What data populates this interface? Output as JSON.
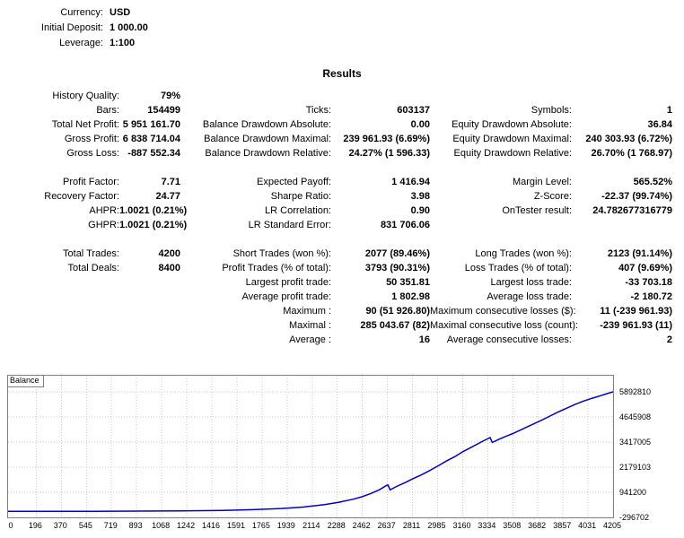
{
  "account": {
    "rows": [
      {
        "label": "Currency:",
        "value": "USD"
      },
      {
        "label": "Initial Deposit:",
        "value": "1 000.00"
      },
      {
        "label": "Leverage:",
        "value": "1:100"
      }
    ]
  },
  "results_title": "Results",
  "stats": {
    "groups": [
      {
        "rows": [
          [
            "History Quality:",
            "79%",
            "",
            "",
            "",
            ""
          ],
          [
            "Bars:",
            "154499",
            "Ticks:",
            "603137",
            "Symbols:",
            "1"
          ],
          [
            "Total Net Profit:",
            "5 951 161.70",
            "Balance Drawdown Absolute:",
            "0.00",
            "Equity Drawdown Absolute:",
            "36.84"
          ],
          [
            "Gross Profit:",
            "6 838 714.04",
            "Balance Drawdown Maximal:",
            "239 961.93 (6.69%)",
            "Equity Drawdown Maximal:",
            "240 303.93 (6.72%)"
          ],
          [
            "Gross Loss:",
            "-887 552.34",
            "Balance Drawdown Relative:",
            "24.27% (1 596.33)",
            "Equity Drawdown Relative:",
            "26.70% (1 768.97)"
          ]
        ]
      },
      {
        "rows": [
          [
            "Profit Factor:",
            "7.71",
            "Expected Payoff:",
            "1 416.94",
            "Margin Level:",
            "565.52%"
          ],
          [
            "Recovery Factor:",
            "24.77",
            "Sharpe Ratio:",
            "3.98",
            "Z-Score:",
            "-22.37 (99.74%)"
          ],
          [
            "AHPR:",
            "1.0021 (0.21%)",
            "LR Correlation:",
            "0.90",
            "OnTester result:",
            "24.782677316779"
          ],
          [
            "GHPR:",
            "1.0021 (0.21%)",
            "LR Standard Error:",
            "831 706.06",
            "",
            ""
          ]
        ]
      },
      {
        "rows": [
          [
            "Total Trades:",
            "4200",
            "Short Trades (won %):",
            "2077 (89.46%)",
            "Long Trades (won %):",
            "2123 (91.14%)"
          ],
          [
            "Total Deals:",
            "8400",
            "Profit Trades (% of total):",
            "3793 (90.31%)",
            "Loss Trades (% of total):",
            "407 (9.69%)"
          ],
          [
            "",
            "",
            "Largest profit trade:",
            "50 351.81",
            "Largest loss trade:",
            "-33 703.18"
          ],
          [
            "",
            "",
            "Average profit trade:",
            "1 802.98",
            "Average loss trade:",
            "-2 180.72"
          ],
          [
            "",
            "",
            "Maximum :",
            "90 (51 926.80)",
            "Maximum consecutive losses ($):",
            "11 (-239 961.93)"
          ],
          [
            "",
            "",
            "Maximal :",
            "285 043.67 (82)",
            "Maximal consecutive loss (count):",
            "-239 961.93 (11)"
          ],
          [
            "",
            "",
            "Average :",
            "16",
            "Average consecutive losses:",
            "2"
          ]
        ]
      }
    ]
  },
  "chart_data": {
    "type": "line",
    "title": "Balance",
    "legend_label": "Balance",
    "line_color": "#0000c8",
    "grid_color": "#c8c8c8",
    "x_range": [
      0,
      4205
    ],
    "y_range": [
      -296702,
      6690000
    ],
    "x_ticks": [
      0,
      196,
      370,
      545,
      719,
      893,
      1068,
      1242,
      1416,
      1591,
      1765,
      1939,
      2114,
      2288,
      2462,
      2637,
      2811,
      2985,
      3160,
      3334,
      3508,
      3682,
      3857,
      4031,
      4205
    ],
    "y_ticks": [
      5892810,
      4645908,
      3417005,
      2179103,
      941200,
      -296702
    ],
    "series": [
      {
        "name": "Balance",
        "points": [
          [
            0,
            1000
          ],
          [
            300,
            2000
          ],
          [
            600,
            5000
          ],
          [
            900,
            12000
          ],
          [
            1200,
            25000
          ],
          [
            1500,
            50000
          ],
          [
            1700,
            85000
          ],
          [
            1900,
            140000
          ],
          [
            2050,
            210000
          ],
          [
            2200,
            330000
          ],
          [
            2300,
            450000
          ],
          [
            2400,
            600000
          ],
          [
            2460,
            720000
          ],
          [
            2520,
            880000
          ],
          [
            2580,
            1060000
          ],
          [
            2630,
            1280000
          ],
          [
            2640,
            1300000
          ],
          [
            2655,
            1060000
          ],
          [
            2700,
            1230000
          ],
          [
            2760,
            1420000
          ],
          [
            2811,
            1600000
          ],
          [
            2870,
            1790000
          ],
          [
            2930,
            2010000
          ],
          [
            2985,
            2230000
          ],
          [
            3050,
            2500000
          ],
          [
            3110,
            2720000
          ],
          [
            3160,
            2940000
          ],
          [
            3230,
            3200000
          ],
          [
            3300,
            3460000
          ],
          [
            3350,
            3640000
          ],
          [
            3365,
            3400000
          ],
          [
            3420,
            3580000
          ],
          [
            3470,
            3730000
          ],
          [
            3508,
            3840000
          ],
          [
            3570,
            4040000
          ],
          [
            3640,
            4270000
          ],
          [
            3700,
            4470000
          ],
          [
            3760,
            4680000
          ],
          [
            3820,
            4890000
          ],
          [
            3880,
            5080000
          ],
          [
            3940,
            5270000
          ],
          [
            4000,
            5440000
          ],
          [
            4060,
            5580000
          ],
          [
            4120,
            5710000
          ],
          [
            4160,
            5800000
          ],
          [
            4205,
            5892810
          ]
        ]
      }
    ]
  }
}
